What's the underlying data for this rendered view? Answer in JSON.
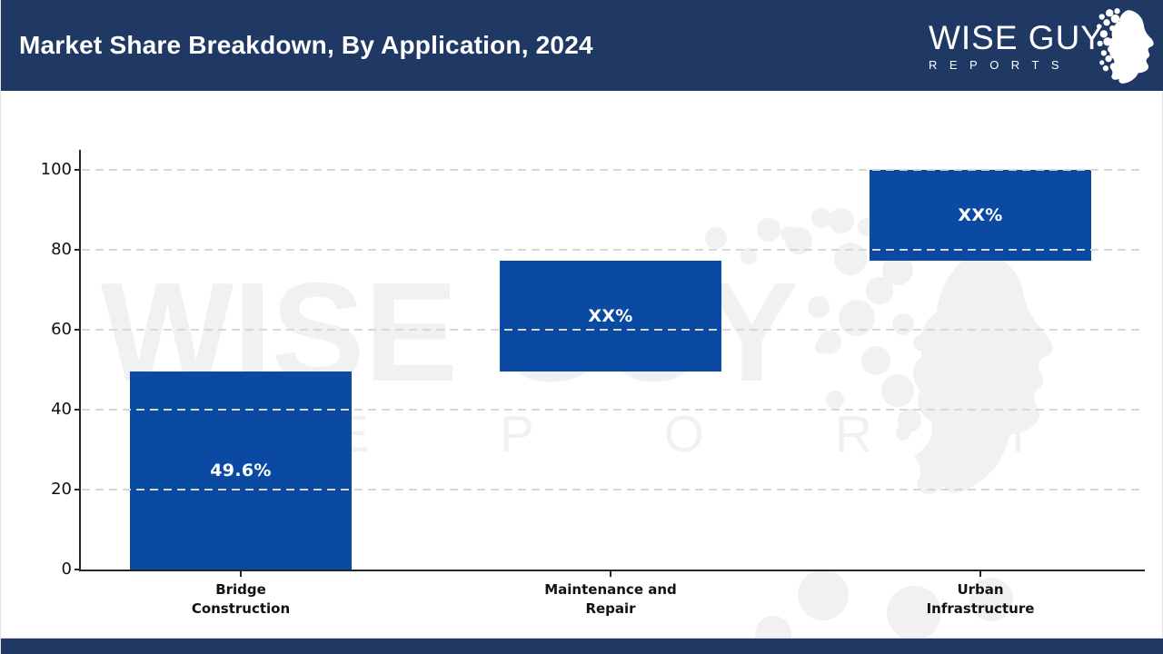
{
  "header": {
    "title": "Market Share Breakdown, By Application, 2024",
    "logo": {
      "brand": "WISE GUY",
      "sub": "REPORTS"
    }
  },
  "watermark": {
    "brand": "WISE GUY",
    "sub_spaced": "R E P O R T S"
  },
  "chart_data": {
    "type": "bar",
    "variant": "floating-segment-waterfall",
    "title": "Market Share Breakdown, By Application, 2024",
    "categories": [
      "Bridge Construction",
      "Maintenance and Repair",
      "Urban Infrastructure"
    ],
    "category_lines": [
      [
        "Bridge",
        "Construction"
      ],
      [
        "Maintenance and",
        "Repair"
      ],
      [
        "Urban",
        "Infrastructure"
      ]
    ],
    "segments": [
      {
        "category": "Bridge Construction",
        "start": 0,
        "end": 49.6,
        "label": "49.6%"
      },
      {
        "category": "Maintenance and Repair",
        "start": 49.6,
        "end": 77.3,
        "label": "XX%"
      },
      {
        "category": "Urban Infrastructure",
        "start": 77.3,
        "end": 100,
        "label": "XX%"
      }
    ],
    "yticks": [
      0,
      20,
      40,
      60,
      80,
      100
    ],
    "ylim": [
      0,
      105
    ],
    "xlabel": "",
    "ylabel": "",
    "grid": "horizontal-dashed",
    "legend": "none",
    "bar_color": "#0b4aa2",
    "value_label_color": "#ffffff"
  },
  "colors": {
    "header_bg": "#1f3864",
    "footer_bg": "#1f3864",
    "bar": "#0b4aa2",
    "axis": "#262626",
    "grid": "#d9d9d9",
    "tick_text": "#111111",
    "watermark": "#f1f1f3"
  }
}
